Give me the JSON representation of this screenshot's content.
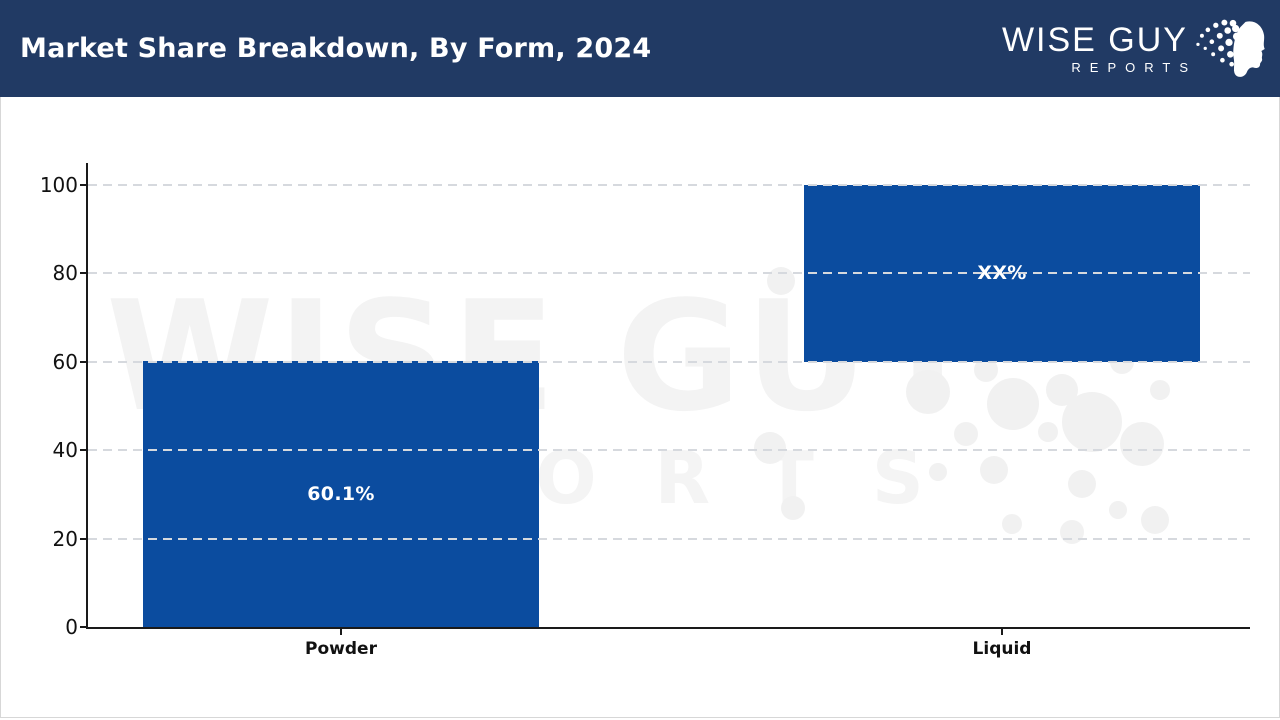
{
  "header": {
    "title": "Market Share Breakdown, By Form, 2024",
    "logo": {
      "line1": "WISE GUY",
      "line2": "REPORTS"
    }
  },
  "watermark": {
    "line1": "WISE GUY",
    "line2": "REPORTS"
  },
  "colors": {
    "header_bg": "#213a64",
    "bar": "#0b4c9f",
    "grid": "#d6d9de",
    "axis": "#1a1a1a",
    "bar_label": "#ffffff",
    "watermark": "#f3f3f3",
    "figure_border": "#d7d7d7"
  },
  "chart_data": {
    "type": "bar",
    "title": "Market Share Breakdown, By Form, 2024",
    "categories": [
      "Powder",
      "Liquid"
    ],
    "series": [
      {
        "name": "Market Share (%)",
        "segments": [
          {
            "category": "Powder",
            "start": 0,
            "end": 60.1,
            "label": "60.1%"
          },
          {
            "category": "Liquid",
            "start": 60,
            "end": 100,
            "label": "XX%"
          }
        ]
      }
    ],
    "ylim": [
      0,
      105
    ],
    "yticks": [
      0,
      20,
      40,
      60,
      80,
      100
    ],
    "grid": "horizontal-dashed",
    "legend": "none",
    "xlabel": "",
    "ylabel": ""
  }
}
